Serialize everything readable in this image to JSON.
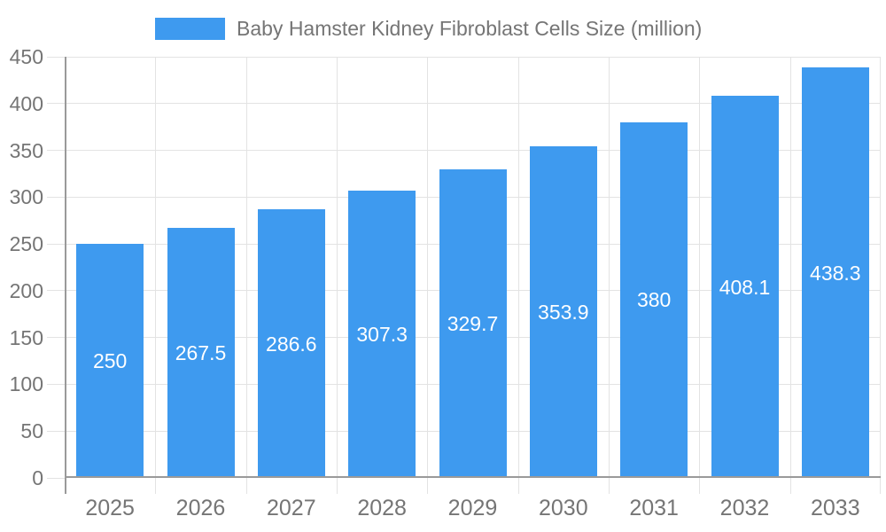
{
  "chart_data": {
    "type": "bar",
    "title": "Baby Hamster Kidney Fibroblast Cells Size (million)",
    "categories": [
      "2025",
      "2026",
      "2027",
      "2028",
      "2029",
      "2030",
      "2031",
      "2032",
      "2033"
    ],
    "values": [
      250,
      267.5,
      286.6,
      307.3,
      329.7,
      353.9,
      380,
      408.1,
      438.3
    ],
    "value_labels": [
      "250",
      "267.5",
      "286.6",
      "307.3",
      "329.7",
      "353.9",
      "380",
      "408.1",
      "438.3"
    ],
    "xlabel": "",
    "ylabel": "",
    "ylim": [
      0,
      450
    ],
    "y_ticks": [
      0,
      50,
      100,
      150,
      200,
      250,
      300,
      350,
      400,
      450
    ],
    "grid": true,
    "legend_position": "top",
    "colors": {
      "bar": "#3E9AEF",
      "gridline": "#E3E3E3",
      "tick": "#E3E3E3",
      "axis_line": "#9A9A9A",
      "axis_text": "#757575",
      "value_text": "#FFFFFF",
      "background": "#FFFFFF"
    }
  }
}
